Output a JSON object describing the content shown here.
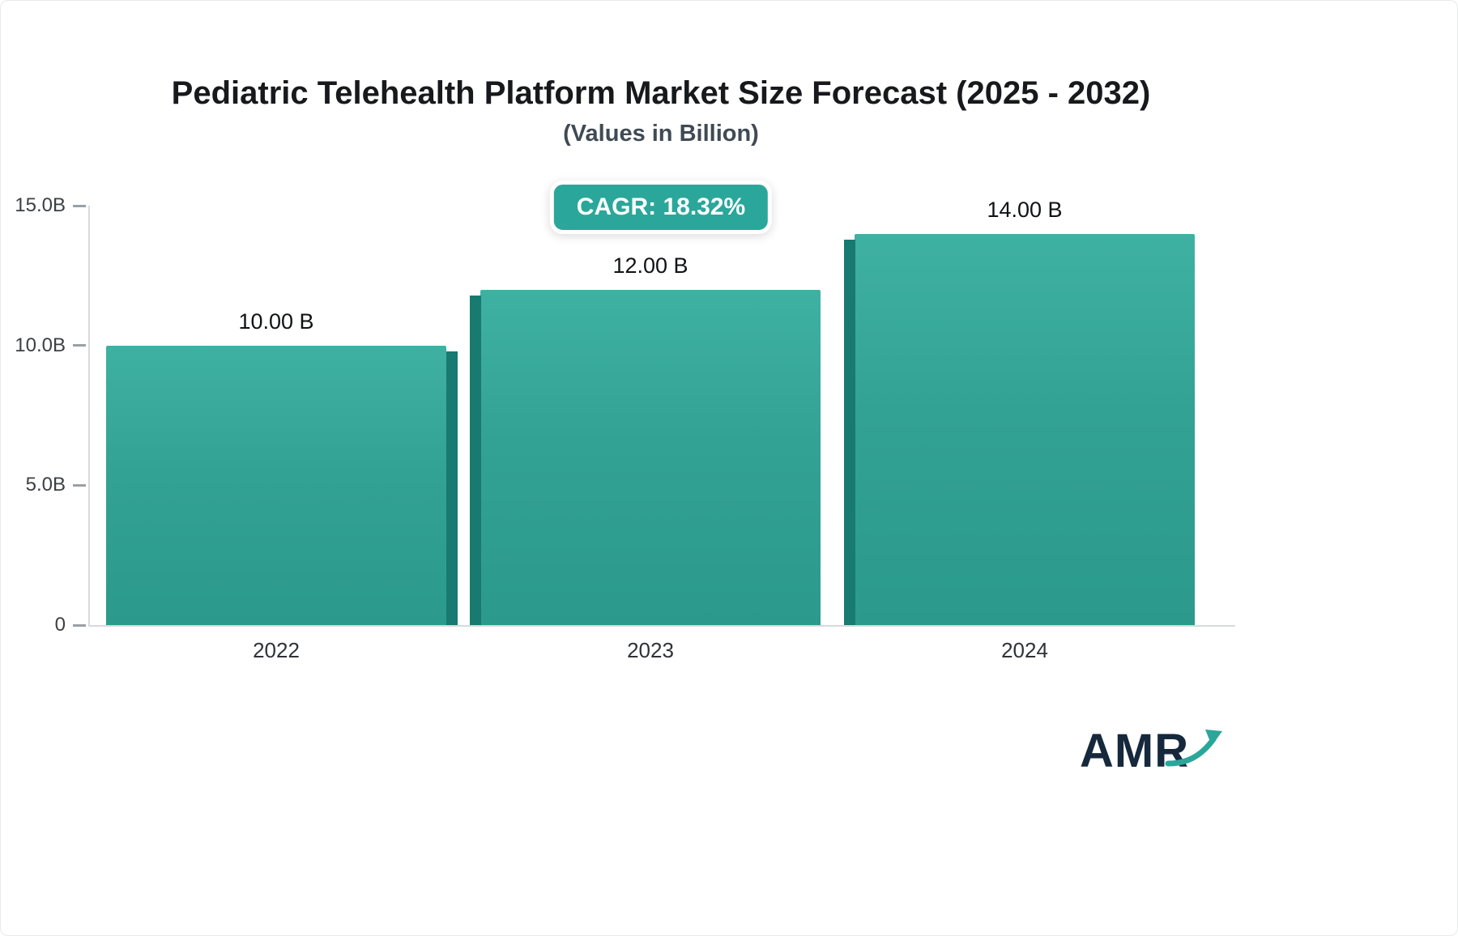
{
  "chart": {
    "cagr_label": "CAGR: 18.32%",
    "colors": {
      "bar": "#32A294",
      "bar_edge": "#187A70",
      "badge": "#2AA79A",
      "title": "#17191C",
      "axis": "#D7DADE"
    }
  },
  "chart_data": {
    "type": "bar",
    "title": "Pediatric Telehealth Platform Market Size Forecast (2025 - 2032)",
    "subtitle": "(Values in Billion)",
    "annotation": "CAGR: 18.32%",
    "categories": [
      "2022",
      "2023",
      "2024"
    ],
    "values": [
      10,
      12,
      14
    ],
    "value_labels": [
      "10.00 B",
      "12.00 B",
      "14.00 B"
    ],
    "xlabel": "",
    "ylabel": "",
    "ylim": [
      0,
      15
    ],
    "yticks": [
      {
        "label": "15.0B",
        "value": 15
      },
      {
        "label": "10.0B",
        "value": 10
      },
      {
        "label": "5.0B",
        "value": 5
      },
      {
        "label": "0",
        "value": 0
      }
    ],
    "grid": false,
    "legend": false
  },
  "branding": {
    "logo_text": "AMR"
  }
}
